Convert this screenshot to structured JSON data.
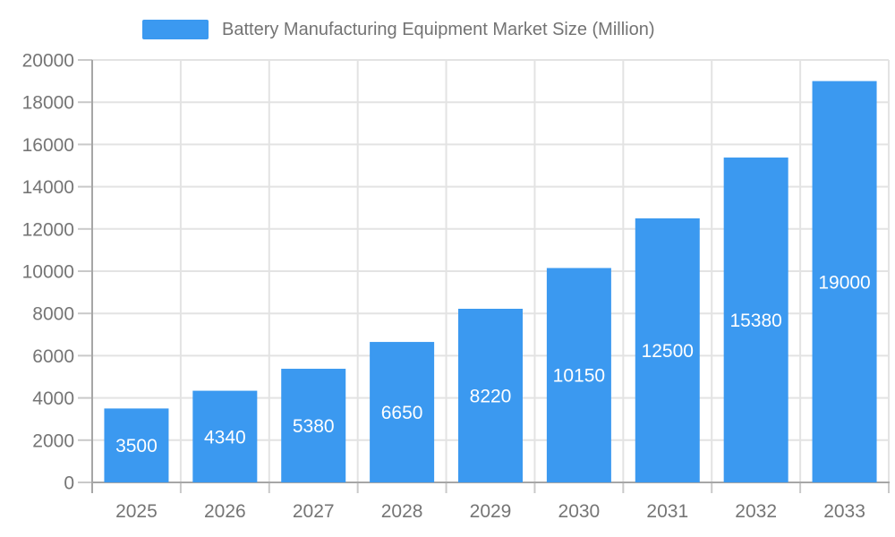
{
  "legend": {
    "label": "Battery Manufacturing Equipment Market Size (Million)"
  },
  "chart_data": {
    "type": "bar",
    "title": "Battery Manufacturing Equipment Market Size (Million)",
    "series_name": "Battery Manufacturing Equipment Market Size (Million)",
    "categories": [
      "2025",
      "2026",
      "2027",
      "2028",
      "2029",
      "2030",
      "2031",
      "2032",
      "2033"
    ],
    "values": [
      3500,
      4340,
      5380,
      6650,
      8220,
      10150,
      12500,
      15380,
      19000
    ],
    "xlabel": "",
    "ylabel": "",
    "ylim": [
      0,
      20000
    ],
    "ytick_step": 2000,
    "ytick_labels": [
      "0",
      "2000",
      "4000",
      "6000",
      "8000",
      "10000",
      "12000",
      "14000",
      "16000",
      "18000",
      "20000"
    ],
    "grid": true,
    "vertical_gridlines": true,
    "legend_position": "top-center",
    "bar_labels_inside": true,
    "colors": {
      "bar": "#3B99F0",
      "bar_label": "#FFFFFF",
      "axis_label": "#757575",
      "legend_text": "#737373",
      "gridline": "#E3E3E3",
      "axis_line": "#A6A6A6",
      "tick": "#C9C9C9",
      "background": "#FFFFFF"
    }
  }
}
